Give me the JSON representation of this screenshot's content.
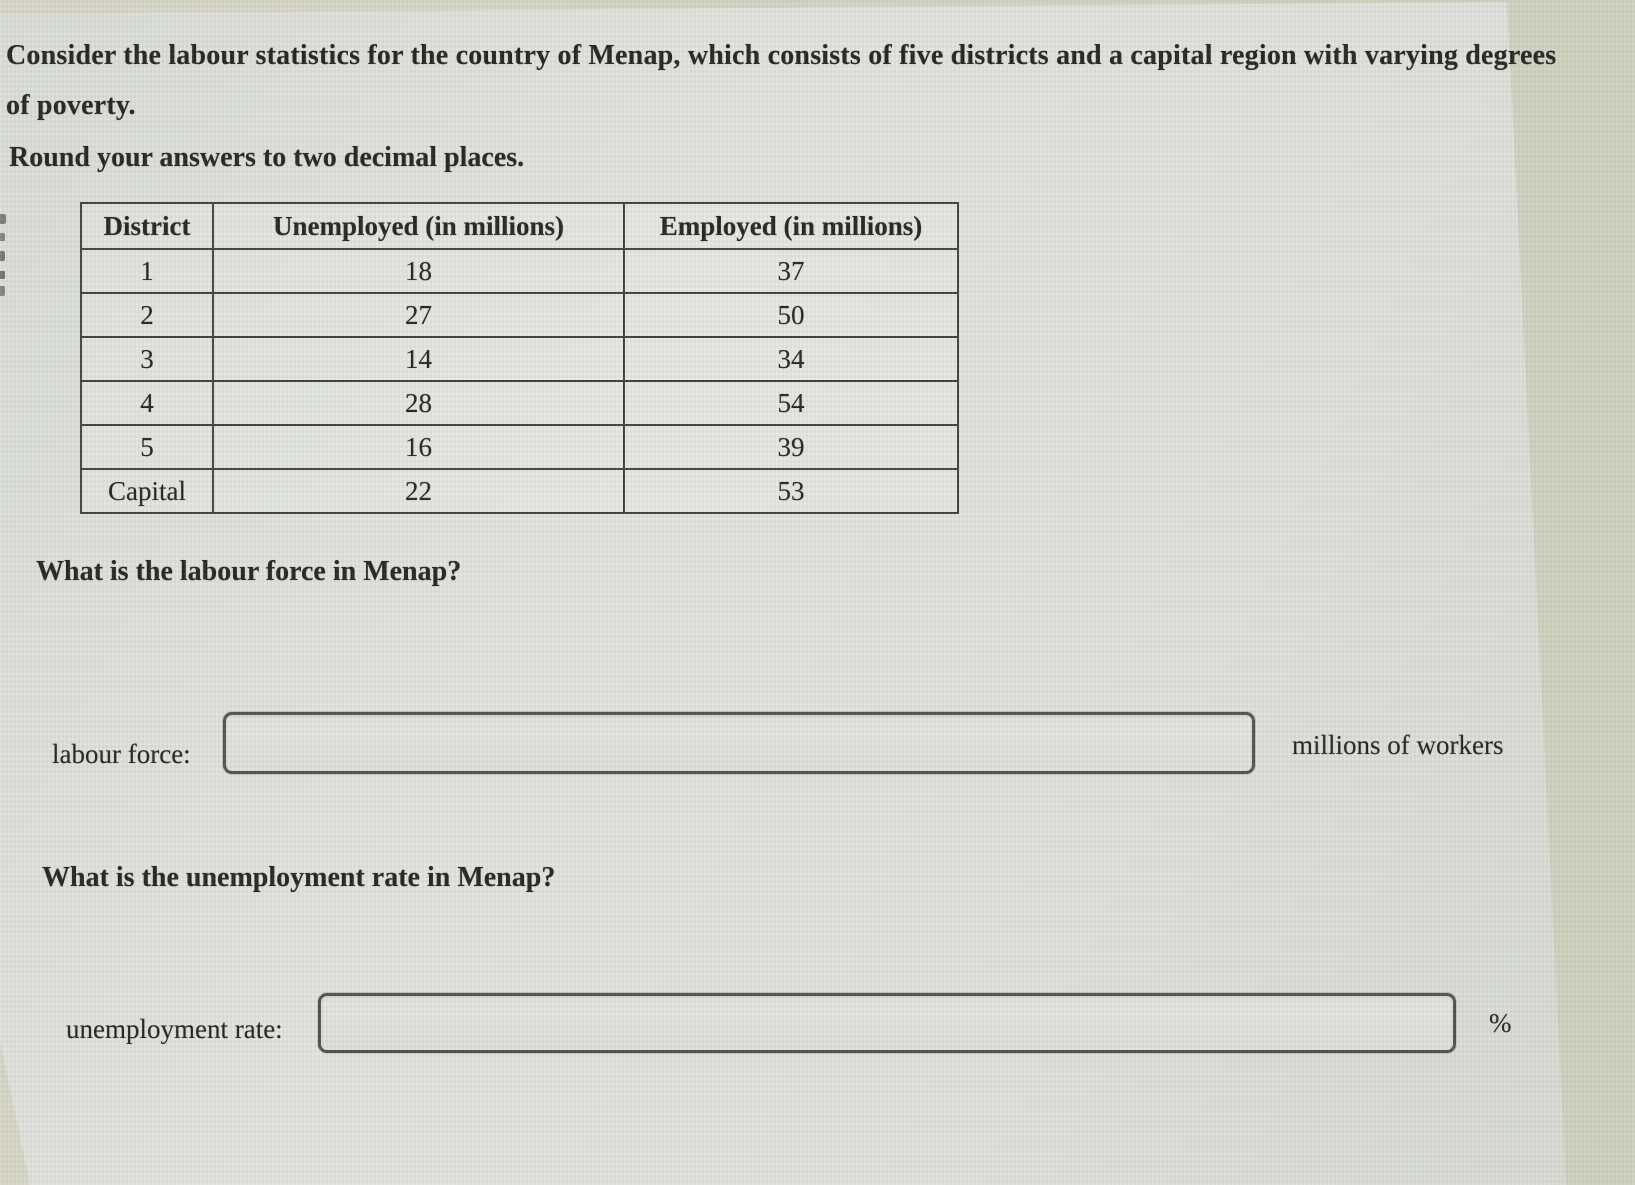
{
  "page": {
    "intro_lines": [
      "Consider the labour statistics for the country of Menap, which consists of five districts and a capital region with varying degrees",
      "of poverty."
    ],
    "instruction": "Round your answers to two decimal places."
  },
  "table": {
    "headers": [
      "District",
      "Unemployed (in millions)",
      "Employed (in millions)"
    ],
    "rows": [
      [
        "1",
        "18",
        "37"
      ],
      [
        "2",
        "27",
        "50"
      ],
      [
        "3",
        "14",
        "34"
      ],
      [
        "4",
        "28",
        "54"
      ],
      [
        "5",
        "16",
        "39"
      ],
      [
        "Capital",
        "22",
        "53"
      ]
    ]
  },
  "questions": {
    "labour_force": {
      "prompt": "What is the labour force in Menap?",
      "label": "labour force:",
      "value": "",
      "unit": "millions of workers"
    },
    "unemployment_rate": {
      "prompt": "What is the unemployment rate in Menap?",
      "label": "unemployment rate:",
      "value": "",
      "unit": "%"
    }
  },
  "colors": {
    "screen_background": "#e0e2dd",
    "surround_background": "#d3d3c2",
    "text": "#1d1d1d",
    "table_border": "#3a3a38",
    "input_border": "#4c4c4a"
  }
}
